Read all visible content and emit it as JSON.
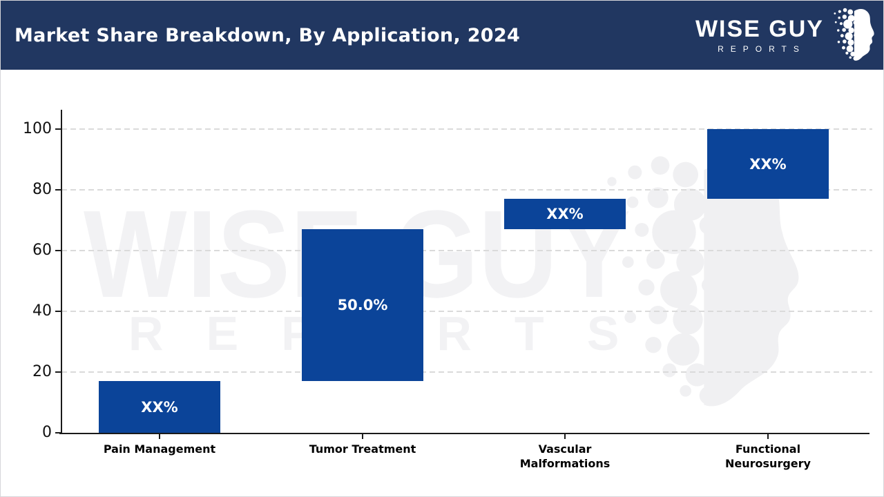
{
  "header": {
    "title": "Market Share Breakdown, By Application, 2024",
    "logo": {
      "wordmark": "WISE GUY",
      "subtext": "REPORTS"
    }
  },
  "watermark": {
    "line1": "WISE GUY",
    "line2": "REPORTS"
  },
  "chart_data": {
    "type": "bar",
    "subtype": "waterfall",
    "title": "Market Share Breakdown, By Application, 2024",
    "categories": [
      "Pain Management",
      "Tumor Treatment",
      "Vascular\nMalformations",
      "Functional\nNeurosurgery"
    ],
    "segments": [
      {
        "category": "Pain Management",
        "label": "XX%",
        "start": 0,
        "end": 17
      },
      {
        "category": "Tumor Treatment",
        "label": "50.0%",
        "start": 17,
        "end": 67
      },
      {
        "category": "Vascular\nMalformations",
        "label": "XX%",
        "start": 67,
        "end": 77
      },
      {
        "category": "Functional\nNeurosurgery",
        "label": "XX%",
        "start": 77,
        "end": 100
      }
    ],
    "yticks": [
      0,
      20,
      40,
      60,
      80,
      100
    ],
    "ylim": [
      0,
      100
    ],
    "xlabel": "",
    "ylabel": "",
    "legend": "none",
    "grid": "horizontal-dashed",
    "colors": {
      "bar": "#0b4499",
      "bar_label": "#ffffff",
      "header_background": "#213761",
      "gridline": "#dadada",
      "axis": "#1a1a1a",
      "watermark": "#f2f2f4"
    }
  }
}
